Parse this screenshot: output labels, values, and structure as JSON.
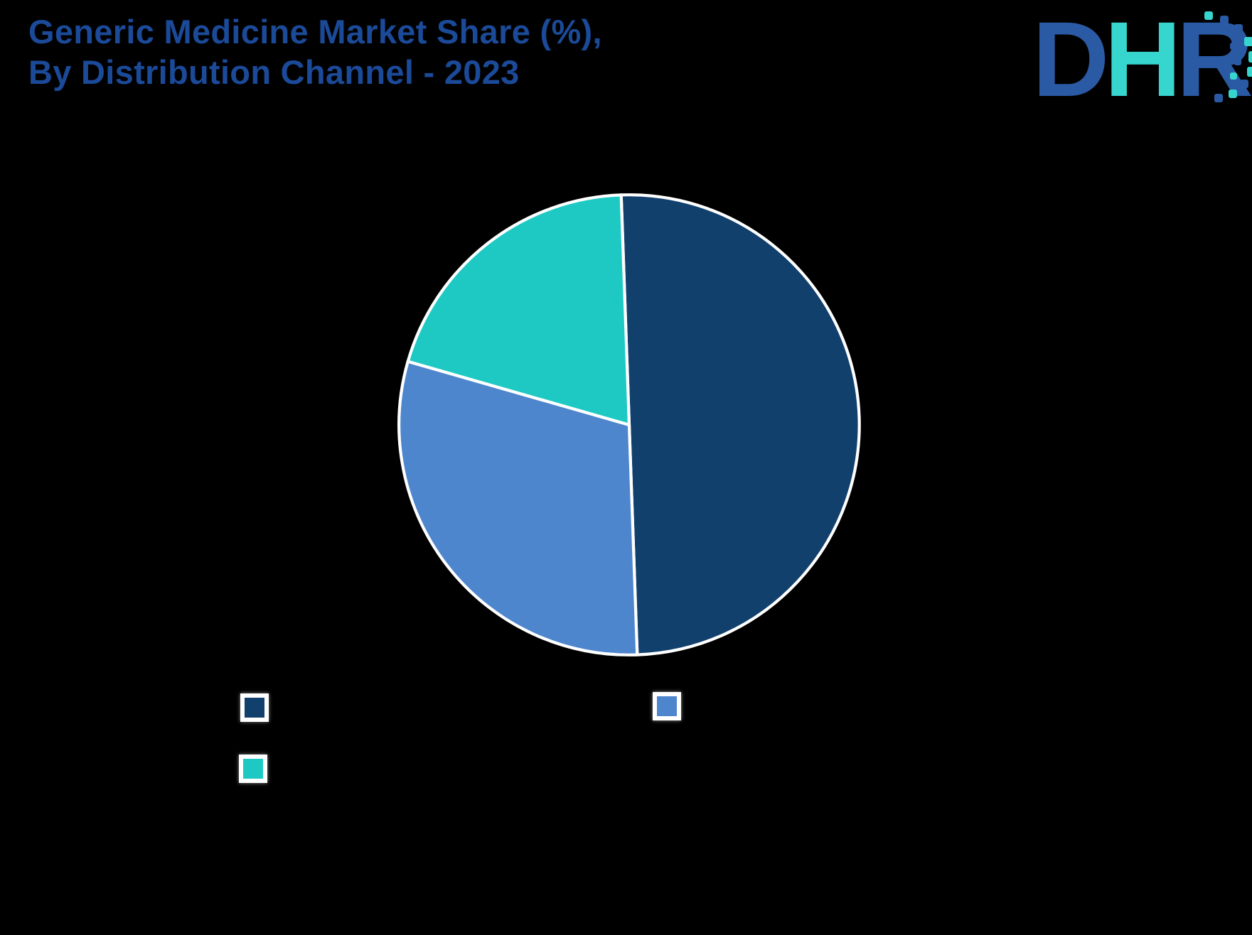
{
  "page": {
    "background_color": "#000000"
  },
  "header": {
    "title_line1": "Generic Medicine Market Share (%),",
    "title_line2": "By Distribution Channel - 2023",
    "title_color": "#1b4a99"
  },
  "logo": {
    "letters": [
      "D",
      "H",
      "R"
    ],
    "letter_colors": [
      "#2b5aa5",
      "#36d5ce",
      "#2b5aa5"
    ],
    "dot_colors": {
      "blue": "#2b5aa5",
      "teal": "#36d5ce"
    }
  },
  "chart_data": {
    "type": "pie",
    "title": "Generic Medicine Market Share (%), By Distribution Channel - 2023",
    "slices": [
      {
        "label": "",
        "value": 50,
        "color": "#12406d"
      },
      {
        "label": "",
        "value": 30,
        "color": "#4e86ce"
      },
      {
        "label": "",
        "value": 20,
        "color": "#1ec9c4"
      }
    ],
    "start_angle_deg": -2,
    "direction": "clockwise",
    "slice_separator_color": "#ffffff",
    "legend": {
      "position": "bottom",
      "columns": 2,
      "labels_visible": false
    }
  }
}
